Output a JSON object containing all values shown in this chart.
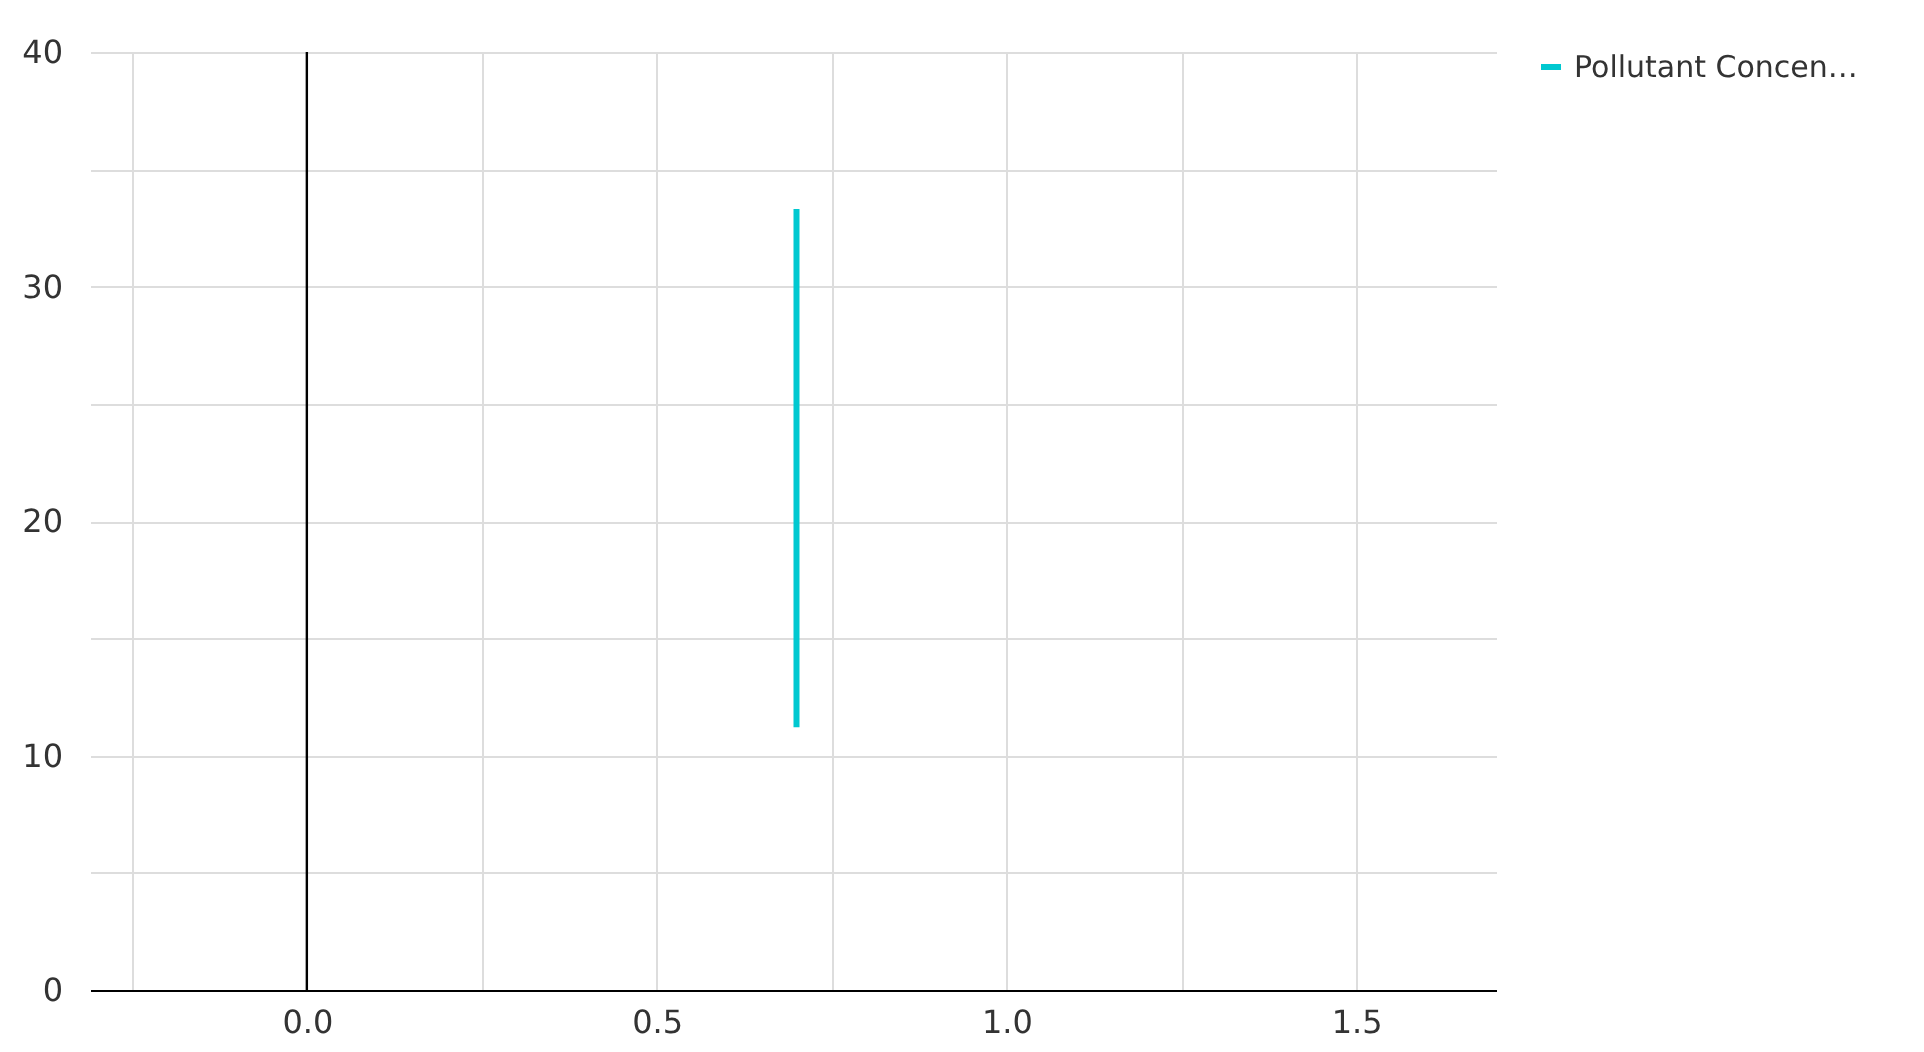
{
  "chart_data": {
    "type": "line",
    "x": [
      0.7,
      0.7
    ],
    "series": [
      {
        "name": "Pollutant Concen…",
        "color": "#00c8d0",
        "values": [
          11.2,
          33.3
        ]
      }
    ],
    "xlim": [
      -0.31,
      1.7
    ],
    "ylim": [
      0,
      40
    ],
    "xticks": [
      {
        "value": -0.25,
        "label": null
      },
      {
        "value": 0,
        "label": "0.0"
      },
      {
        "value": 0.25,
        "label": null
      },
      {
        "value": 0.5,
        "label": "0.5"
      },
      {
        "value": 0.75,
        "label": null
      },
      {
        "value": 1,
        "label": "1.0"
      },
      {
        "value": 1.25,
        "label": null
      },
      {
        "value": 1.5,
        "label": "1.5"
      }
    ],
    "yticks": [
      0,
      {
        "value": 5,
        "label": null
      },
      10,
      {
        "value": 15,
        "label": null
      },
      20,
      {
        "value": 25,
        "label": null
      },
      30,
      {
        "value": 35,
        "label": null
      },
      40
    ],
    "ref_lines": [
      {
        "axis": "x",
        "value": 0,
        "color": "#000000"
      }
    ],
    "grid": true,
    "legend": "top right",
    "marker": "none",
    "line_style": "solid"
  }
}
